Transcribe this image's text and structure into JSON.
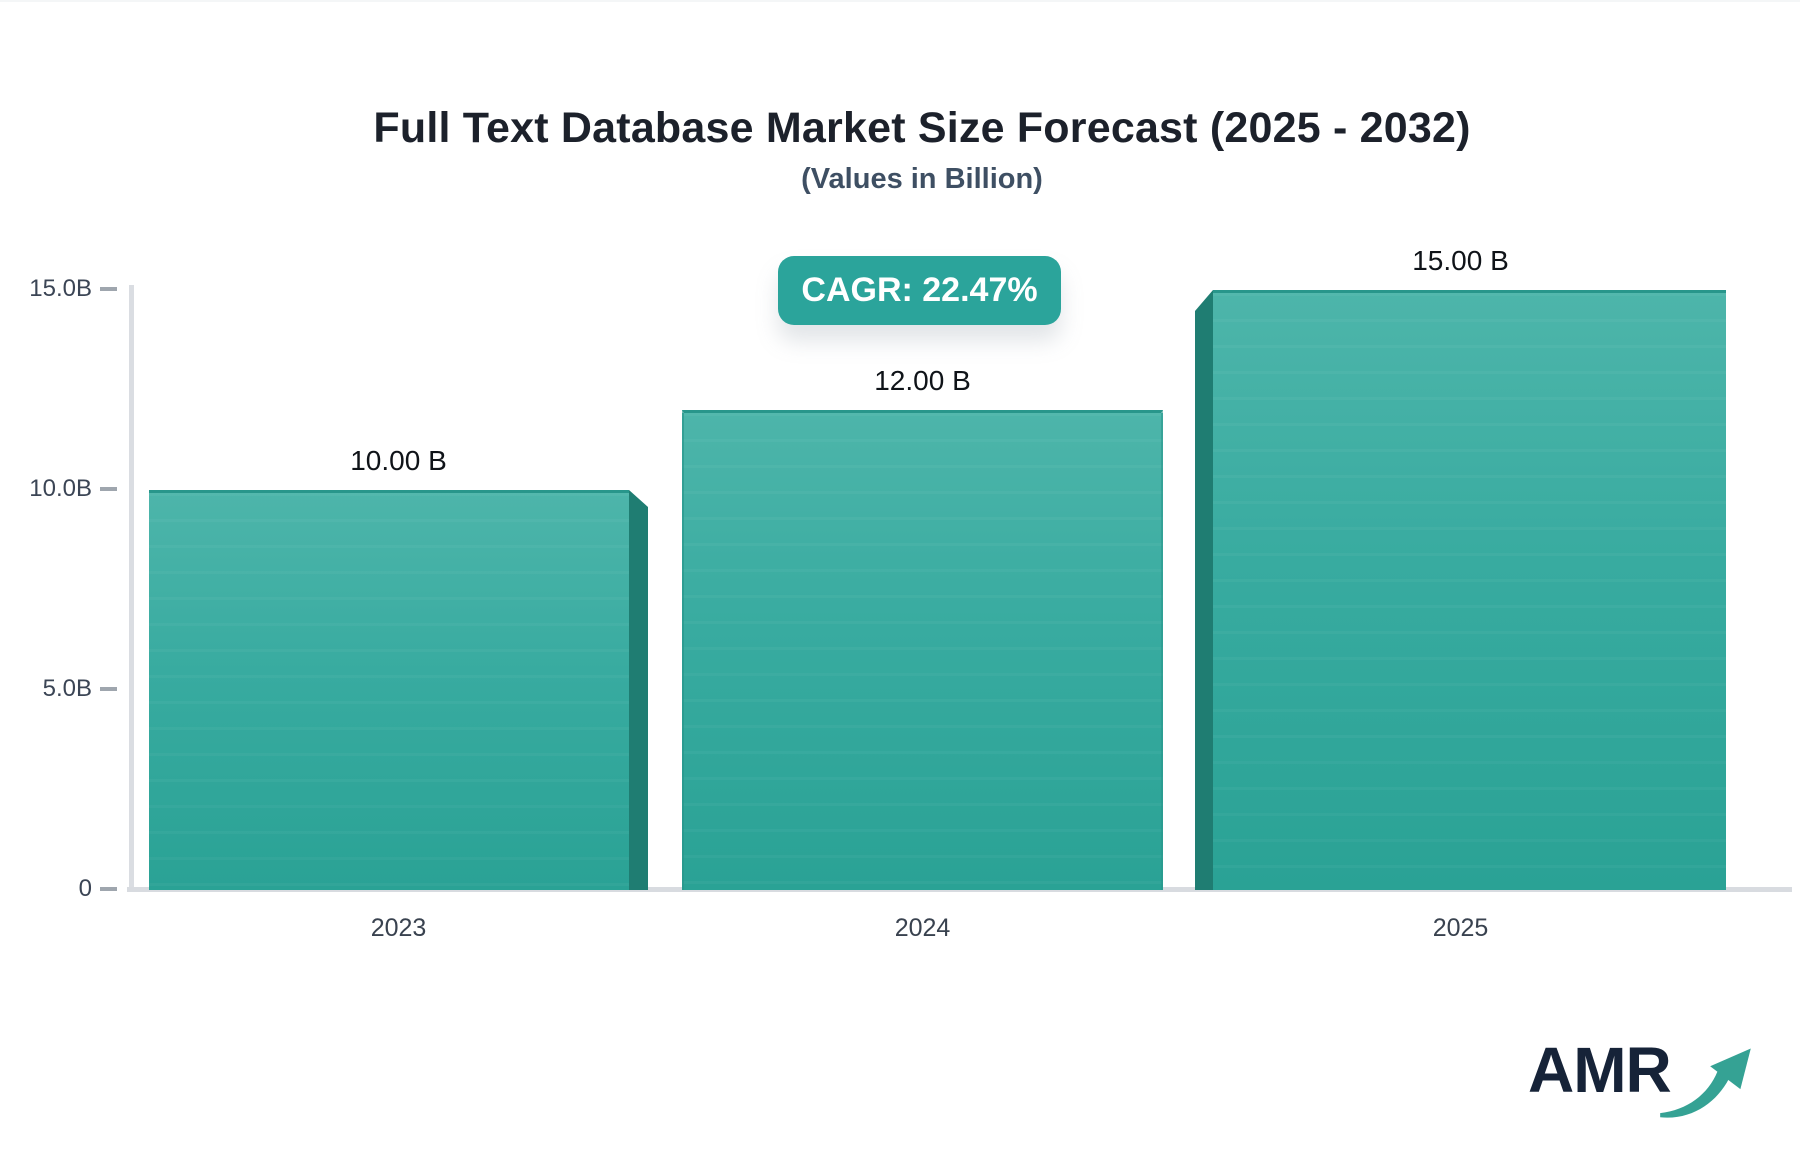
{
  "chart_data": {
    "type": "bar",
    "title": "Full Text Database Market Size Forecast (2025 - 2032)",
    "subtitle": "(Values in Billion)",
    "cagr_badge": "CAGR: 22.47%",
    "categories": [
      "2023",
      "2024",
      "2025"
    ],
    "values": [
      10,
      12,
      15
    ],
    "value_labels": [
      "10.00 B",
      "12.00 B",
      "15.00 B"
    ],
    "ytick_labels": [
      "15.0B",
      "10.0B",
      "5.0B",
      "0"
    ],
    "ytick_values": [
      15,
      10,
      5,
      0
    ],
    "ylim": [
      0,
      15
    ],
    "xlabel": "",
    "ylabel": "",
    "grid": false,
    "legend": false,
    "bar_style": "3d-perspective",
    "units": "Billion USD"
  },
  "branding": {
    "logo_text": "AMR",
    "logo_icon": "growth-arrow-icon"
  },
  "colors": {
    "bar_top": "#4db5aa",
    "bar_bottom": "#2aa295",
    "bar_side_dark": "#1f7d72",
    "badge_teal": "#2ba49b",
    "title_text": "#1c212b",
    "subtitle_text": "#3e4f63",
    "axis_gray": "#d8dbe0",
    "tick_gray": "#9fa6ae",
    "logo_navy": "#162338",
    "logo_arrow_teal": "#35a294"
  }
}
